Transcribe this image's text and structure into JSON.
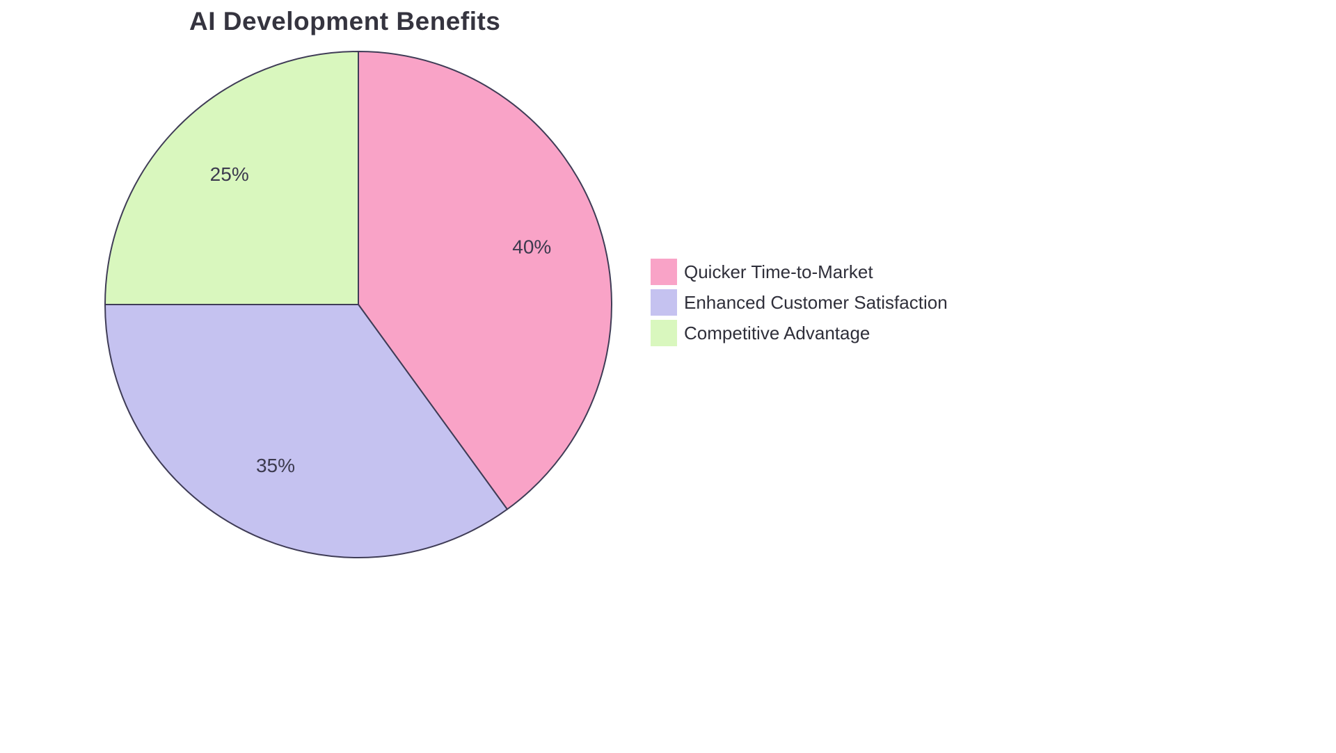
{
  "chart_data": {
    "type": "pie",
    "title": "AI Development Benefits",
    "labels": [
      "Quicker Time-to-Market",
      "Enhanced Customer Satisfaction",
      "Competitive Advantage"
    ],
    "values": [
      40,
      35,
      25
    ],
    "value_labels": [
      "40%",
      "35%",
      "25%"
    ],
    "colors": [
      "#F9A3C7",
      "#C5C2F0",
      "#D9F7BE"
    ],
    "stroke_color": "#3F3C56",
    "label_color": "#3C3A4E",
    "start_angle_deg": -90,
    "direction": "clockwise",
    "legend_position": "right",
    "grid": false
  }
}
